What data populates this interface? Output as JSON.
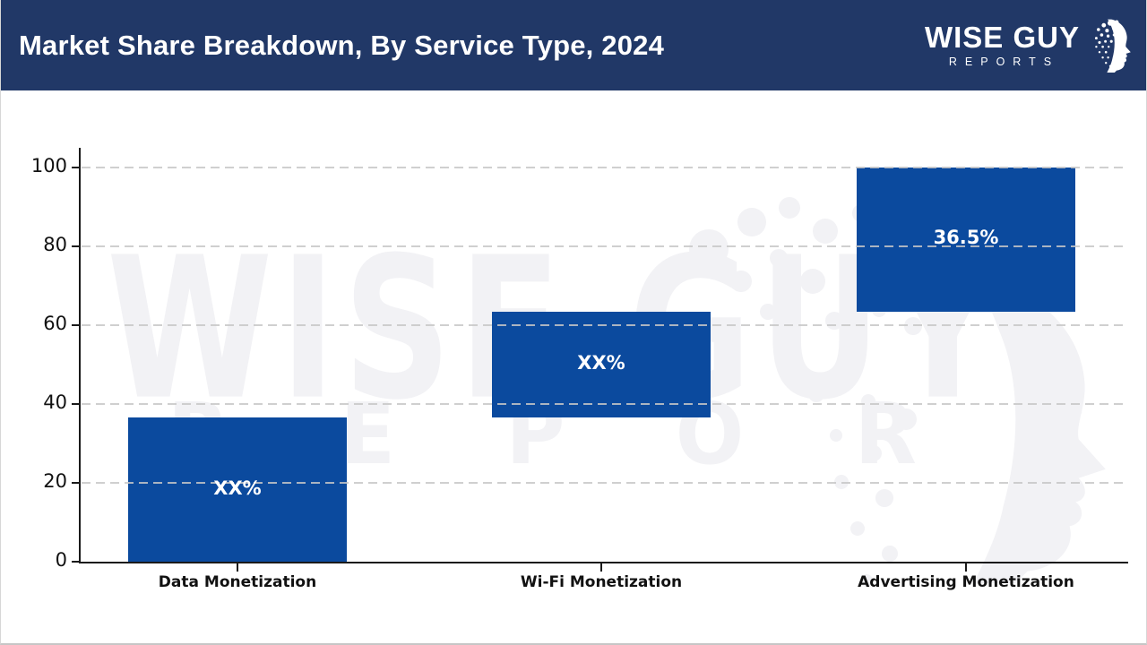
{
  "header": {
    "title": "Market Share Breakdown, By Service Type, 2024",
    "logo": {
      "line1": "WISE GUY",
      "line2": "REPORTS"
    }
  },
  "watermark": {
    "line1": "WISE GUY",
    "line2": "R E P O R T S"
  },
  "colors": {
    "header_bg": "#213867",
    "bar_blue": "#0b4a9e",
    "grid_gray": "#c7c7c7",
    "watermark_gray": "#f2f2f5",
    "axis_black": "#1a1a1a"
  },
  "chart_data": {
    "type": "bar",
    "subtype": "floating-stacked-breakdown",
    "title": "Market Share Breakdown, By Service Type, 2024",
    "categories": [
      "Data Monetization",
      "Wi-Fi Monetization",
      "Advertising Monetization"
    ],
    "segments": [
      {
        "category": "Data Monetization",
        "start": 0,
        "end": 36.5,
        "size": 36.5,
        "label": "XX%"
      },
      {
        "category": "Wi-Fi Monetization",
        "start": 36.5,
        "end": 63.5,
        "size": 27.0,
        "label": "XX%"
      },
      {
        "category": "Advertising Monetization",
        "start": 63.5,
        "end": 100,
        "size": 36.5,
        "label": "36.5%"
      }
    ],
    "ylim": [
      0,
      100
    ],
    "yticks": [
      0,
      20,
      40,
      60,
      80,
      100
    ],
    "xlabel": "",
    "ylabel": "",
    "grid": "horizontal-dashed",
    "legend": "none",
    "bar_color": "#0b4a9e"
  }
}
